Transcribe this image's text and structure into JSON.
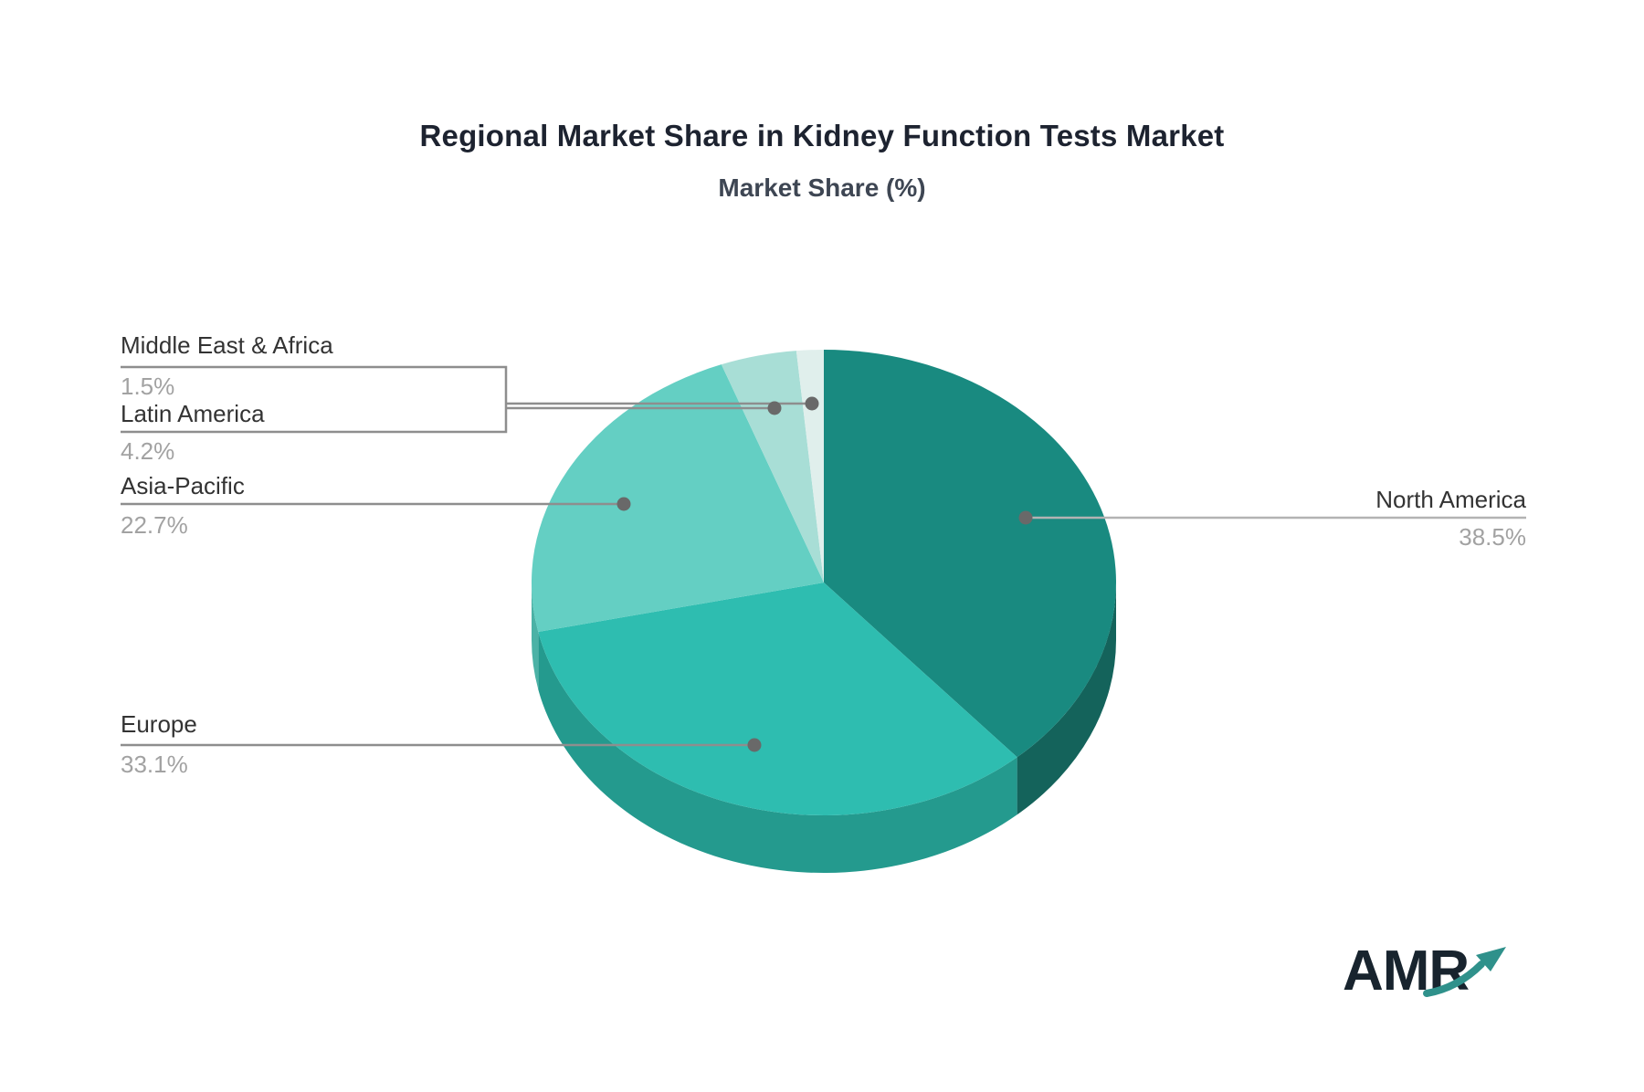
{
  "header": {
    "title": "Regional Market Share in Kidney Function Tests Market",
    "subtitle": "Market Share (%)"
  },
  "chart_data": {
    "type": "pie",
    "style": "3d",
    "title": "Regional Market Share in Kidney Function Tests Market",
    "subtitle": "Market Share (%)",
    "unit": "%",
    "start_angle_deg": 0,
    "direction": "clockwise",
    "legend_position": "none",
    "label_style": "outside labels with leader lines and end dots",
    "slices": [
      {
        "label": "North America",
        "value": 38.5,
        "display": "38.5%",
        "color": "#198a80",
        "side_color": "#14635b"
      },
      {
        "label": "Europe",
        "value": 33.1,
        "display": "33.1%",
        "color": "#2ebdb0",
        "side_color": "#249a8e"
      },
      {
        "label": "Asia-Pacific",
        "value": 22.7,
        "display": "22.7%",
        "color": "#64cfc3",
        "side_color": "#4bb2a6"
      },
      {
        "label": "Latin America",
        "value": 4.2,
        "display": "4.2%",
        "color": "#a8ded6",
        "side_color": "#8cc9c0"
      },
      {
        "label": "Middle East & Africa",
        "value": 1.5,
        "display": "1.5%",
        "color": "#e0efec",
        "side_color": "#c4dcd8"
      }
    ]
  },
  "logo": {
    "text": "AMR"
  },
  "colors": {
    "background": "#ffffff",
    "title_text": "#1d2330",
    "subtitle_text": "#3e4653",
    "label_text": "#333333",
    "value_text": "#a2a2a2",
    "leader_line": "#8e8e8e",
    "leader_line_light": "#b3b3b3",
    "leader_dot": "#696969",
    "logo_text": "#18242e",
    "logo_arrow": "#2f918b"
  }
}
